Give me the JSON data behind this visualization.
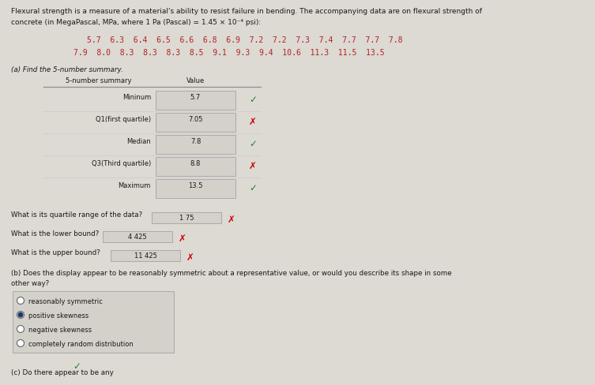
{
  "title_line1": "Flexural strength is a measure of a material's ability to resist failure in bending. The accompanying data are on flexural strength of",
  "title_line2": "concrete (in MegaPascal, MPa, where 1 Pa (Pascal) = 1.45 × 10⁻⁴ psi):",
  "data_row1": "5.7  6.3  6.4  6.5  6.6  6.8  6.9  7.2  7.2  7.3  7.4  7.7  7.7  7.8",
  "data_row2": "7.9  8.0  8.3  8.3  8.3  8.5  9.1  9.3  9.4  10.6  11.3  11.5  13.5",
  "part_a": "(a) Find the 5-number summary.",
  "table_header_col1": "5-number summary",
  "table_header_col2": "Value",
  "table_rows": [
    {
      "label": "Mininum",
      "value": "5.7",
      "correct": true
    },
    {
      "label": "Q1(first quartile)",
      "value": "7.05",
      "correct": false
    },
    {
      "label": "Median",
      "value": "7.8",
      "correct": true
    },
    {
      "label": "Q3(Third quartile)",
      "value": "8.8",
      "correct": false
    },
    {
      "label": "Maximum",
      "value": "13.5",
      "correct": true
    }
  ],
  "q_iqr": "What is its quartile range of the data?",
  "iqr_value": "1 75",
  "iqr_correct": false,
  "q_lower": "What is the lower bound?",
  "lower_value": "4 425",
  "lower_correct": false,
  "q_upper": "What is the upper bound?",
  "upper_value": "11 425",
  "upper_correct": false,
  "part_b_line1": "(b) Does the display appear to be reasonably symmetric about a representative value, or would you describe its shape in some",
  "part_b_line2": "other way?",
  "radio_options": [
    {
      "text": "reasonably symmetric",
      "selected": false
    },
    {
      "text": "positive skewness",
      "selected": true
    },
    {
      "text": "negative skewness",
      "selected": false
    },
    {
      "text": "completely random distribution",
      "selected": false
    }
  ],
  "part_c": "(c) Do there appear to be any",
  "bg_color": "#ddd9d3",
  "text_color": "#1a1a1a",
  "data_color": "#b22222",
  "correct_color": "#2e7d32",
  "wrong_color": "#cc0000",
  "box_color": "#d4d0ca",
  "box_edge": "#aaaaaa"
}
